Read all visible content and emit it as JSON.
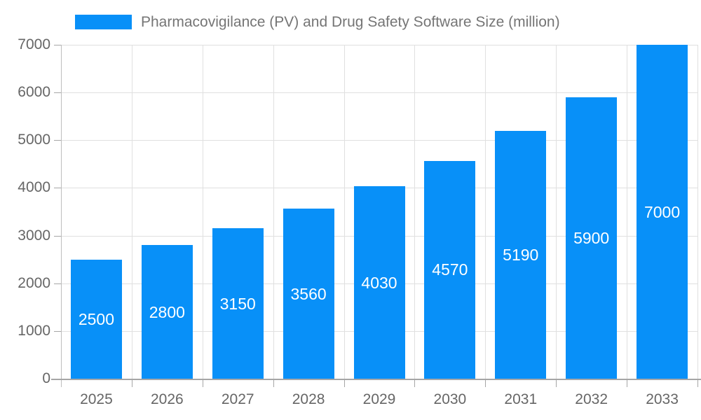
{
  "legend": {
    "label": "Pharmacovigilance (PV) and Drug Safety Software Size (million)"
  },
  "colors": {
    "bar": "#0890f8",
    "bar_label": "#ffffff",
    "axis_text": "#666666",
    "legend_text": "#757575",
    "gridline": "#e0e0e0",
    "axis_line": "#a6a6a6"
  },
  "chart_data": {
    "type": "bar",
    "title": "Pharmacovigilance (PV) and Drug Safety Software Size (million)",
    "categories": [
      "2025",
      "2026",
      "2027",
      "2028",
      "2029",
      "2030",
      "2031",
      "2032",
      "2033"
    ],
    "values": [
      2500,
      2800,
      3150,
      3560,
      4030,
      4570,
      5190,
      5900,
      7000
    ],
    "series": [
      {
        "name": "Pharmacovigilance (PV) and Drug Safety Software Size (million)",
        "values": [
          2500,
          2800,
          3150,
          3560,
          4030,
          4570,
          5190,
          5900,
          7000
        ]
      }
    ],
    "xlabel": "",
    "ylabel": "",
    "ylim": [
      0,
      7000
    ],
    "yticks": [
      0,
      1000,
      2000,
      3000,
      4000,
      5000,
      6000,
      7000
    ],
    "grid": true,
    "legend_position": "top",
    "value_labels": "inside-center"
  }
}
